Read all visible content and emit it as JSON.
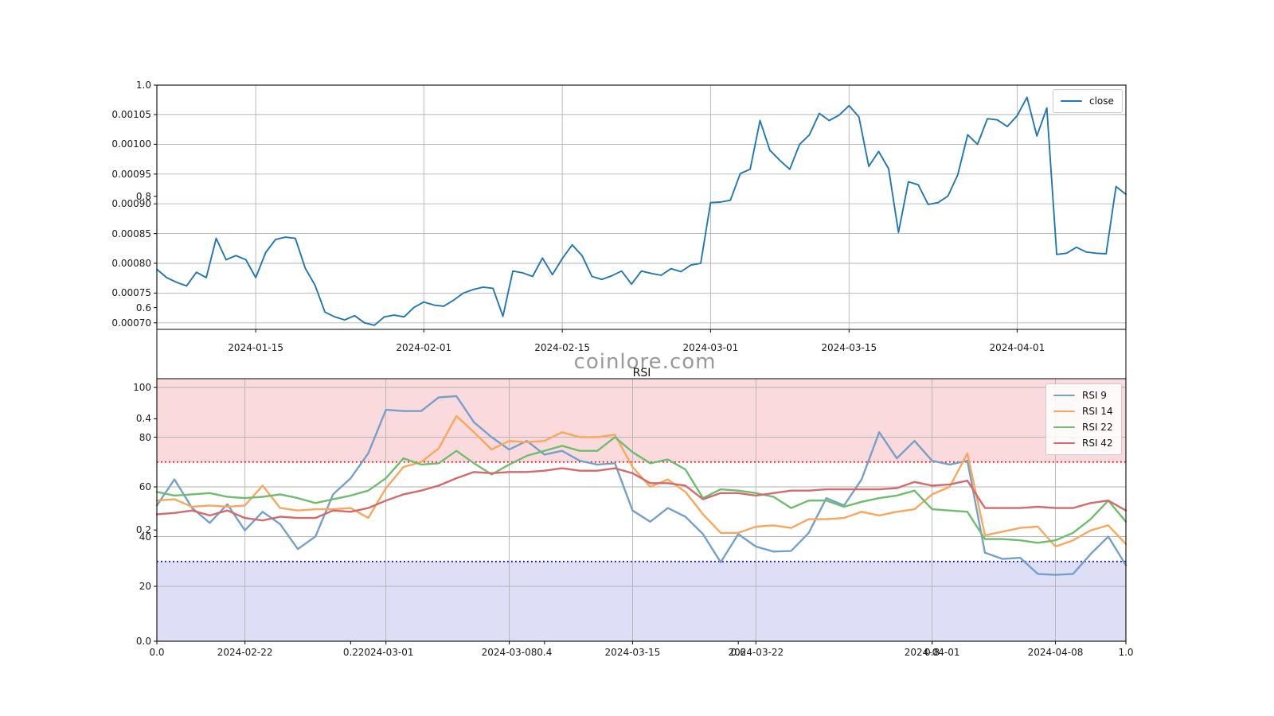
{
  "watermark": {
    "text": "coinlore.com",
    "color": "#999999"
  },
  "figure_axis": {
    "y_labels": [
      "1.0",
      "0.8",
      "0.6",
      "0.4",
      "0.2",
      "0.0"
    ],
    "x_labels": [
      "0.0",
      "0.2",
      "0.4",
      "0.6",
      "0.8",
      "1.0"
    ]
  },
  "chart_data": [
    {
      "type": "line",
      "title": "",
      "legend_position": "upper right",
      "grid": true,
      "grid_color": "#b3b3b3",
      "x_start_date": "2024-01-05",
      "x_tick_labels": [
        "2024-01-15",
        "2024-02-01",
        "2024-02-15",
        "2024-03-01",
        "2024-03-15",
        "2024-04-01"
      ],
      "x_tick_indices": [
        10,
        27,
        41,
        56,
        70,
        87
      ],
      "y_tick_labels": [
        "0.00105",
        "0.00100",
        "0.00095",
        "0.00090",
        "0.00085",
        "0.00080",
        "0.00075",
        "0.00070"
      ],
      "y_tick_values": [
        0.00105,
        0.001,
        0.00095,
        0.0009,
        0.00085,
        0.0008,
        0.00075,
        0.0007
      ],
      "ylim": [
        0.000689,
        0.0011
      ],
      "series": [
        {
          "name": "close",
          "color": "#1f77b4",
          "values": [
            0.00079,
            0.000776,
            0.000768,
            0.000762,
            0.000785,
            0.000776,
            0.000842,
            0.000806,
            0.000813,
            0.000806,
            0.000776,
            0.000818,
            0.00084,
            0.000844,
            0.000842,
            0.000792,
            0.000763,
            0.000718,
            0.00071,
            0.000705,
            0.000712,
            0.0007,
            0.000696,
            0.00071,
            0.000713,
            0.00071,
            0.000726,
            0.000735,
            0.00073,
            0.000728,
            0.000738,
            0.00075,
            0.000756,
            0.00076,
            0.000758,
            0.000711,
            0.000787,
            0.000784,
            0.000778,
            0.000809,
            0.000781,
            0.000808,
            0.000831,
            0.000813,
            0.000778,
            0.000773,
            0.000779,
            0.000787,
            0.000765,
            0.000787,
            0.000783,
            0.00078,
            0.000791,
            0.000786,
            0.000797,
            0.0008,
            0.000902,
            0.000903,
            0.000906,
            0.000951,
            0.000958,
            0.00104,
            0.00099,
            0.000973,
            0.000958,
            0.001,
            0.001016,
            0.001052,
            0.00104,
            0.001049,
            0.001065,
            0.001046,
            0.000963,
            0.000988,
            0.000959,
            0.000852,
            0.000937,
            0.000932,
            0.000899,
            0.000902,
            0.000913,
            0.000949,
            0.001016,
            0.001,
            0.001043,
            0.001041,
            0.00103,
            0.001048,
            0.001079,
            0.001014,
            0.001061,
            0.000815,
            0.000817,
            0.000827,
            0.000819,
            0.000817,
            0.000816,
            0.000929,
            0.000916
          ]
        }
      ]
    },
    {
      "type": "line",
      "title": "RSI",
      "legend_position": "upper right",
      "grid": true,
      "grid_color": "#b3b3b3",
      "x_start_date": "2024-02-17",
      "x_tick_labels": [
        "2024-02-22",
        "2024-03-01",
        "2024-03-08",
        "2024-03-15",
        "2024-03-22",
        "2024-04-01",
        "2024-04-08"
      ],
      "x_tick_indices": [
        5,
        13,
        20,
        27,
        34,
        44,
        51
      ],
      "y_tick_labels": [
        "100",
        "80",
        "60",
        "40",
        "20"
      ],
      "y_tick_values": [
        100,
        80,
        60,
        40,
        20
      ],
      "ylim": [
        -2,
        103.5
      ],
      "overbought_level": 70,
      "oversold_level": 30,
      "overbought_band_color": "#fbdadd",
      "oversold_band_color": "#dedef6",
      "overbought_line_color": "#ff0000",
      "oversold_line_color": "#0000cd",
      "series": [
        {
          "name": "RSI 9",
          "color": "#74a1c9",
          "values": [
            52.5,
            63,
            51.5,
            45.5,
            53,
            42.5,
            50,
            45,
            35,
            40,
            57,
            63.5,
            73.5,
            91,
            90.5,
            90.5,
            96,
            96.5,
            86,
            80,
            75,
            78.5,
            73,
            74.5,
            70.5,
            69,
            69.5,
            50.5,
            46,
            51.5,
            48,
            41,
            29.7,
            41,
            36,
            34,
            34.2,
            41.5,
            55.5,
            52.5,
            63,
            82,
            71.5,
            78.5,
            70.5,
            69,
            70.5,
            33.5,
            31,
            31.5,
            25,
            24.6,
            25,
            33,
            40,
            28.5
          ]
        },
        {
          "name": "RSI 14",
          "color": "#faa65b",
          "values": [
            54.5,
            55,
            52,
            52.5,
            52,
            52.5,
            60.5,
            51.5,
            50.5,
            51,
            51,
            51.5,
            47.5,
            59.5,
            68,
            70,
            75.5,
            88.5,
            82,
            75,
            78.5,
            78,
            78.5,
            82,
            80,
            80,
            81,
            68,
            60,
            63,
            58,
            49,
            41.5,
            41.5,
            44,
            44.5,
            43.5,
            47,
            47,
            47.5,
            50,
            48.5,
            50,
            51,
            57,
            60,
            73.5,
            40.5,
            42,
            43.5,
            44,
            36,
            38.5,
            42.5,
            44.5,
            37
          ]
        },
        {
          "name": "RSI 22",
          "color": "#6ebd6e",
          "values": [
            58,
            56.5,
            57,
            57.5,
            56,
            55.5,
            56,
            57,
            55.5,
            53.5,
            55,
            56.5,
            58.5,
            63.5,
            71.5,
            69,
            69.5,
            74.5,
            69.5,
            65,
            69,
            72.5,
            74.5,
            76.5,
            74.5,
            74.5,
            80,
            74,
            69.5,
            71,
            67,
            55.5,
            59,
            58.5,
            57.5,
            56,
            51.5,
            54.5,
            54.5,
            52,
            54,
            55.5,
            56.5,
            58.5,
            51,
            50.5,
            50,
            39,
            39,
            38.5,
            37.5,
            38.5,
            41.5,
            47,
            54.5,
            46
          ]
        },
        {
          "name": "RSI 42",
          "color": "#d56a6c",
          "values": [
            49,
            49.5,
            50.5,
            48.5,
            50.5,
            47.5,
            46.5,
            48,
            47.5,
            47.5,
            50.5,
            50,
            51.5,
            54.5,
            57,
            58.5,
            60.5,
            63.5,
            66,
            65.5,
            66,
            66,
            66.5,
            67.5,
            66.5,
            66.5,
            67.5,
            65.5,
            61.5,
            61.5,
            60.5,
            55,
            57.5,
            57.5,
            56.5,
            57.5,
            58.5,
            58.5,
            59,
            59,
            59,
            59,
            59.5,
            62,
            60.5,
            61,
            62.5,
            51.5,
            51.5,
            51.5,
            52,
            51.5,
            51.5,
            53.5,
            54.5,
            50.5
          ]
        }
      ]
    }
  ]
}
